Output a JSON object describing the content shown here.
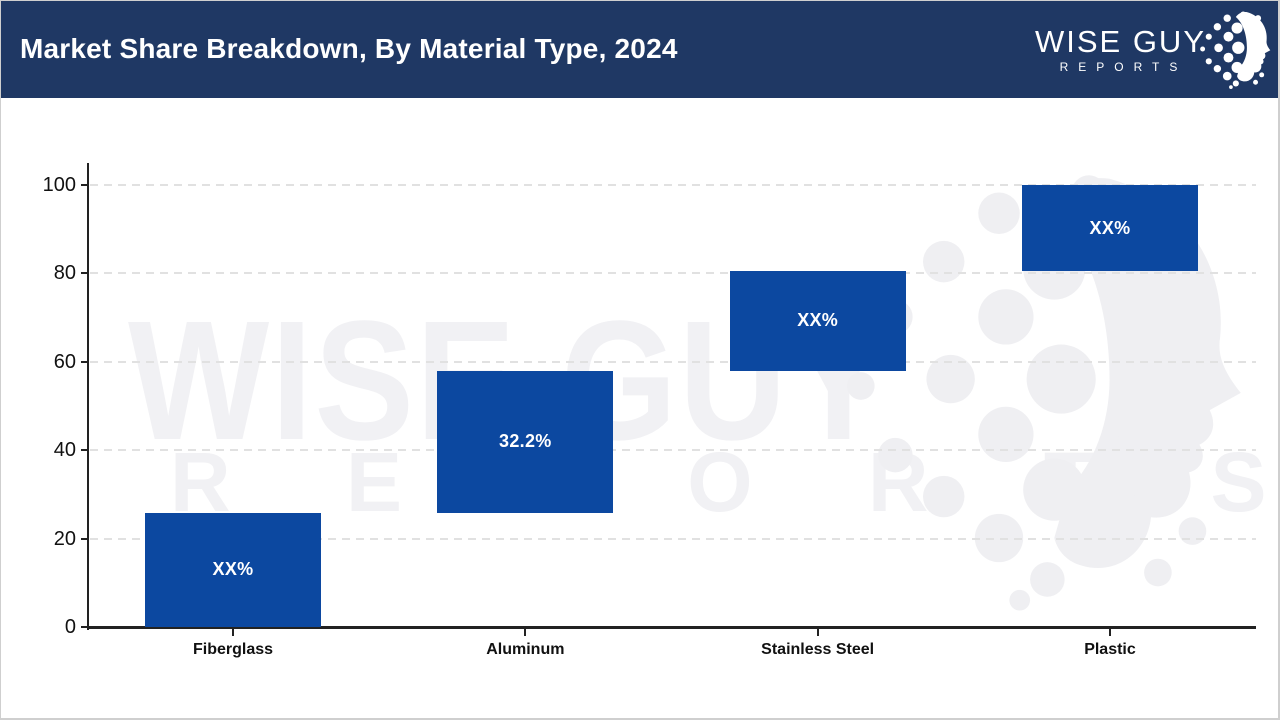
{
  "header": {
    "title": "Market Share Breakdown, By Material Type, 2024",
    "bg_color": "#1f3864",
    "logo_line1": "WISE GUY",
    "logo_line2": "REPORTS"
  },
  "watermark": {
    "line1": "WISE GUY",
    "line2": "R E P O R T S"
  },
  "chart_data": {
    "type": "bar",
    "variant": "waterfall-stacked-percentage",
    "title": "Market Share Breakdown, By Material Type, 2024",
    "categories": [
      "Fiberglass",
      "Aluminum",
      "Stainless Steel",
      "Plastic"
    ],
    "segments": [
      {
        "category": "Fiberglass",
        "start": 0,
        "end": 25.8,
        "label": "XX%"
      },
      {
        "category": "Aluminum",
        "start": 25.8,
        "end": 58.0,
        "label": "32.2%"
      },
      {
        "category": "Stainless Steel",
        "start": 58.0,
        "end": 80.5,
        "label": "XX%"
      },
      {
        "category": "Plastic",
        "start": 80.5,
        "end": 100,
        "label": "XX%"
      }
    ],
    "values_displayed": [
      "XX%",
      "32.2%",
      "XX%",
      "XX%"
    ],
    "total": 100,
    "yticks": [
      0,
      20,
      40,
      60,
      80,
      100
    ],
    "ylim": [
      0,
      105
    ],
    "xlabel": "",
    "ylabel": "",
    "legend": "none",
    "grid": "horizontal-dashed",
    "bar_color": "#0c48a0",
    "bar_label_color": "#ffffff",
    "axis_color": "#222222",
    "gridline_color": "#e1e1e1"
  }
}
